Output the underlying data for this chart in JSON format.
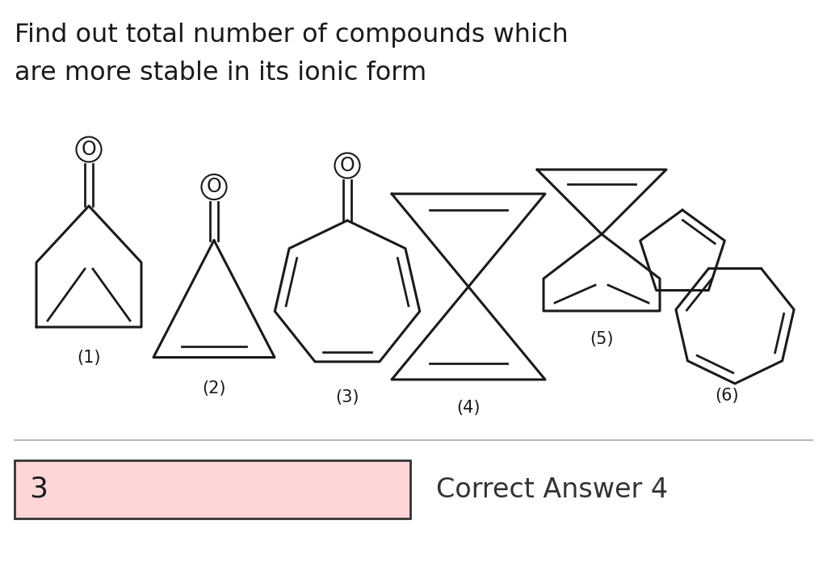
{
  "title_line1": "Find out total number of compounds which",
  "title_line2": "are more stable in its ionic form",
  "title_fontsize": 23,
  "labels": [
    "(1)",
    "(2)",
    "(3)",
    "(4)",
    "(5)",
    "(6)"
  ],
  "answer_text": "3",
  "correct_answer_text": "Correct Answer 4",
  "answer_box_color": "#ffd6d6",
  "answer_box_border": "#333333",
  "background_color": "#ffffff",
  "line_color": "#1a1a1a",
  "line_width": 2.2,
  "label_fontsize": 15
}
